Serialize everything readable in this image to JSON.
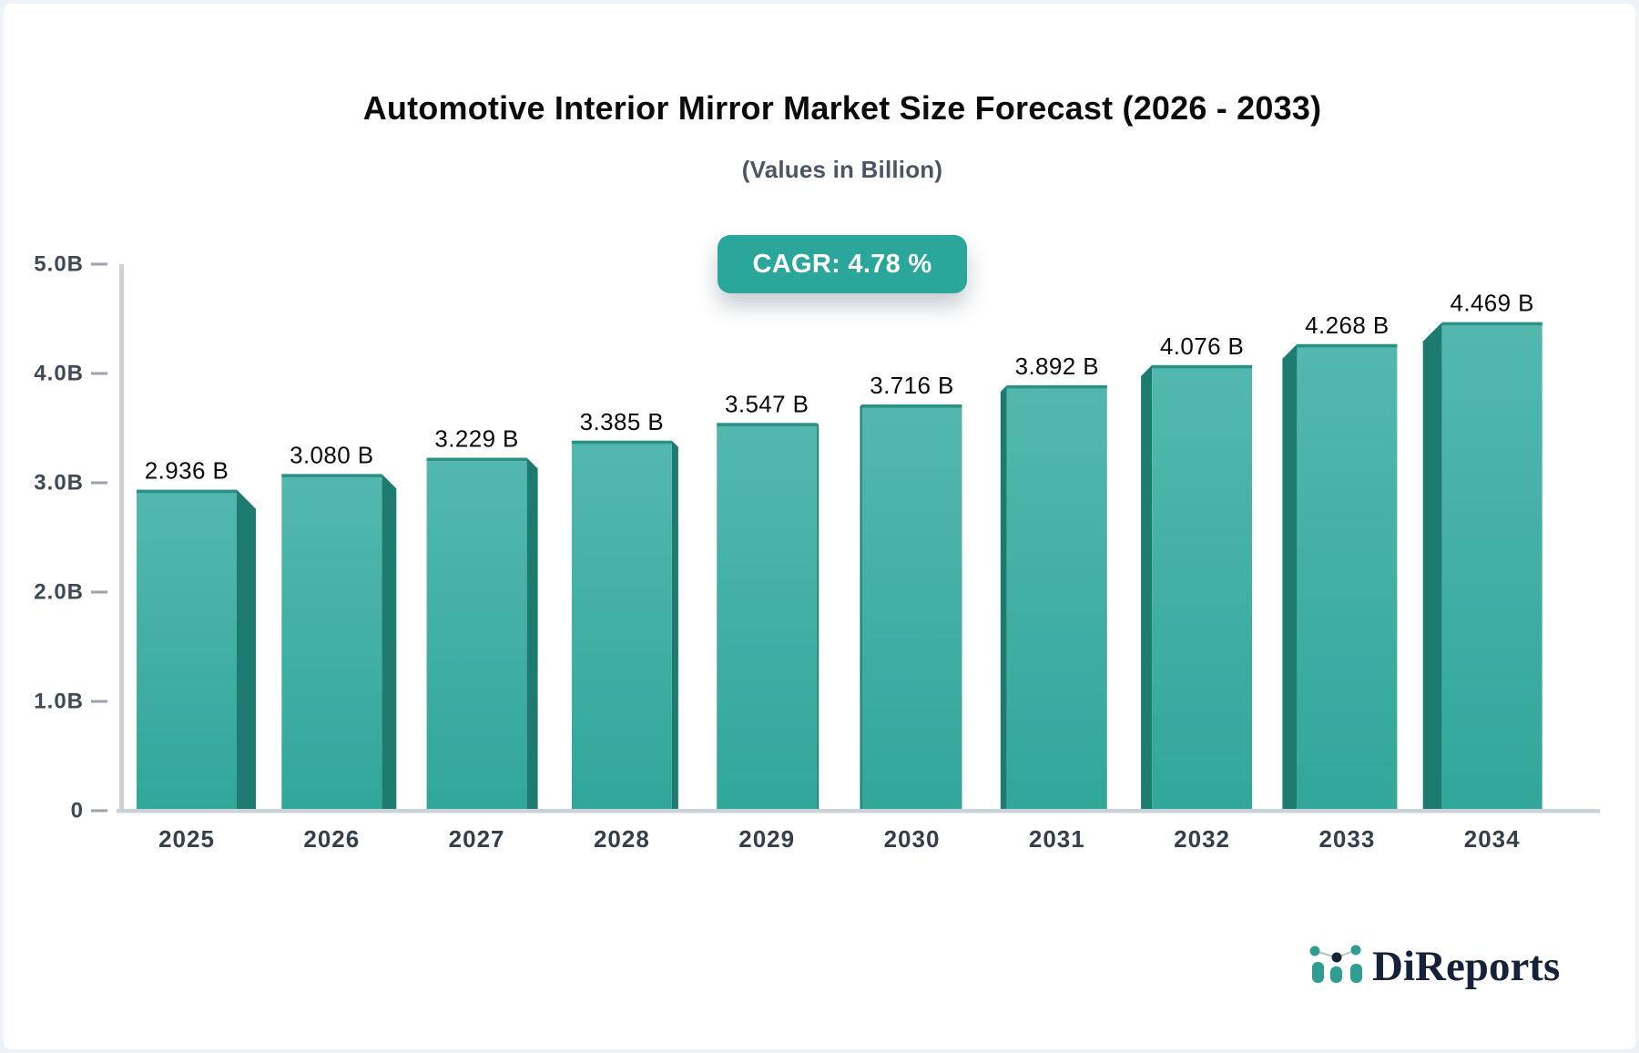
{
  "header": {
    "title": "Automotive Interior Mirror Market Size Forecast (2026 - 2033)",
    "subtitle": "(Values in Billion)"
  },
  "badge": {
    "label": "CAGR: 4.78 %"
  },
  "logo": {
    "name": "DiReports"
  },
  "chart_data": {
    "type": "bar",
    "title": "Automotive Interior Mirror Market Size Forecast (2026 - 2033)",
    "subtitle": "(Values in Billion)",
    "cagr": "4.78 %",
    "categories": [
      "2025",
      "2026",
      "2027",
      "2028",
      "2029",
      "2030",
      "2031",
      "2032",
      "2033",
      "2034"
    ],
    "values": [
      2.936,
      3.08,
      3.229,
      3.385,
      3.547,
      3.716,
      3.892,
      4.076,
      4.268,
      4.469
    ],
    "value_labels": [
      "2.936 B",
      "3.080 B",
      "3.229 B",
      "3.385 B",
      "3.547 B",
      "3.716 B",
      "3.892 B",
      "4.076 B",
      "4.268 B",
      "4.469 B"
    ],
    "ylabel": "",
    "xlabel": "",
    "ylim": [
      0,
      5
    ],
    "grid": false,
    "legend": null,
    "yticks": [
      {
        "value": 0,
        "label": "0"
      },
      {
        "value": 1,
        "label": "1.0B"
      },
      {
        "value": 2,
        "label": "2.0B"
      },
      {
        "value": 3,
        "label": "3.0B"
      },
      {
        "value": 4,
        "label": "4.0B"
      },
      {
        "value": 5,
        "label": "5.0B"
      }
    ],
    "colors": {
      "bar_face_top": "#53b8ae",
      "bar_face_bottom": "#31a799",
      "bar_side": "#1e7b70",
      "bar_top_edge": "#2b9186",
      "axis_line": "#ccd2d9",
      "tick_dash": "#98a2ac",
      "tick_label": "#3e4a57",
      "year_label": "#353f4b",
      "value_label": "#0a0a0a",
      "badge_bg": "#2aa69b",
      "logo_teal": "#2f9d93",
      "logo_navy": "#16233b"
    }
  }
}
